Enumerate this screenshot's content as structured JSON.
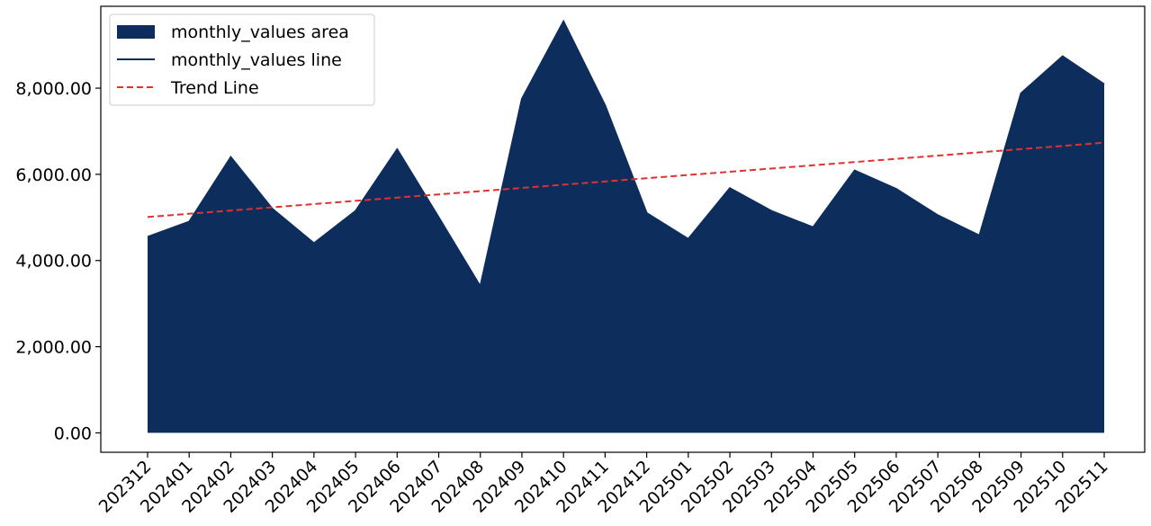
{
  "chart_data": {
    "type": "area",
    "title": "",
    "xlabel": "",
    "ylabel": "",
    "ylim": [
      -450,
      9900
    ],
    "y_ticks": [
      0,
      2000,
      4000,
      6000,
      8000
    ],
    "y_tick_labels": [
      "0.00",
      "2,000.00",
      "4,000.00",
      "6,000.00",
      "8,000.00"
    ],
    "grid": false,
    "legend_position": "top-left",
    "categories": [
      "202312",
      "202401",
      "202402",
      "202403",
      "202404",
      "202405",
      "202406",
      "202407",
      "202408",
      "202409",
      "202410",
      "202411",
      "202412",
      "202501",
      "202502",
      "202503",
      "202504",
      "202505",
      "202506",
      "202507",
      "202508",
      "202509",
      "202510",
      "202511"
    ],
    "series": [
      {
        "name": "monthly_values area",
        "kind": "area",
        "color": "#0d2d5c",
        "values": [
          4550,
          4900,
          6400,
          5200,
          4400,
          5150,
          6580,
          5000,
          3400,
          7750,
          9550,
          7600,
          5100,
          4500,
          5680,
          5150,
          4770,
          6090,
          5660,
          5050,
          4580,
          7880,
          8740,
          8090
        ]
      },
      {
        "name": "monthly_values line",
        "kind": "line",
        "color": "#0d2d5c",
        "values": [
          4550,
          4900,
          6400,
          5200,
          4400,
          5150,
          6580,
          5000,
          3400,
          7750,
          9550,
          7600,
          5100,
          4500,
          5680,
          5150,
          4770,
          6090,
          5660,
          5050,
          4580,
          7880,
          8740,
          8090
        ]
      },
      {
        "name": "Trend Line",
        "kind": "trend",
        "color": "#e03131",
        "values": [
          5010,
          5085,
          5160,
          5235,
          5310,
          5385,
          5460,
          5535,
          5610,
          5685,
          5760,
          5835,
          5910,
          5985,
          6060,
          6135,
          6210,
          6285,
          6360,
          6435,
          6510,
          6585,
          6660,
          6735
        ]
      }
    ]
  }
}
